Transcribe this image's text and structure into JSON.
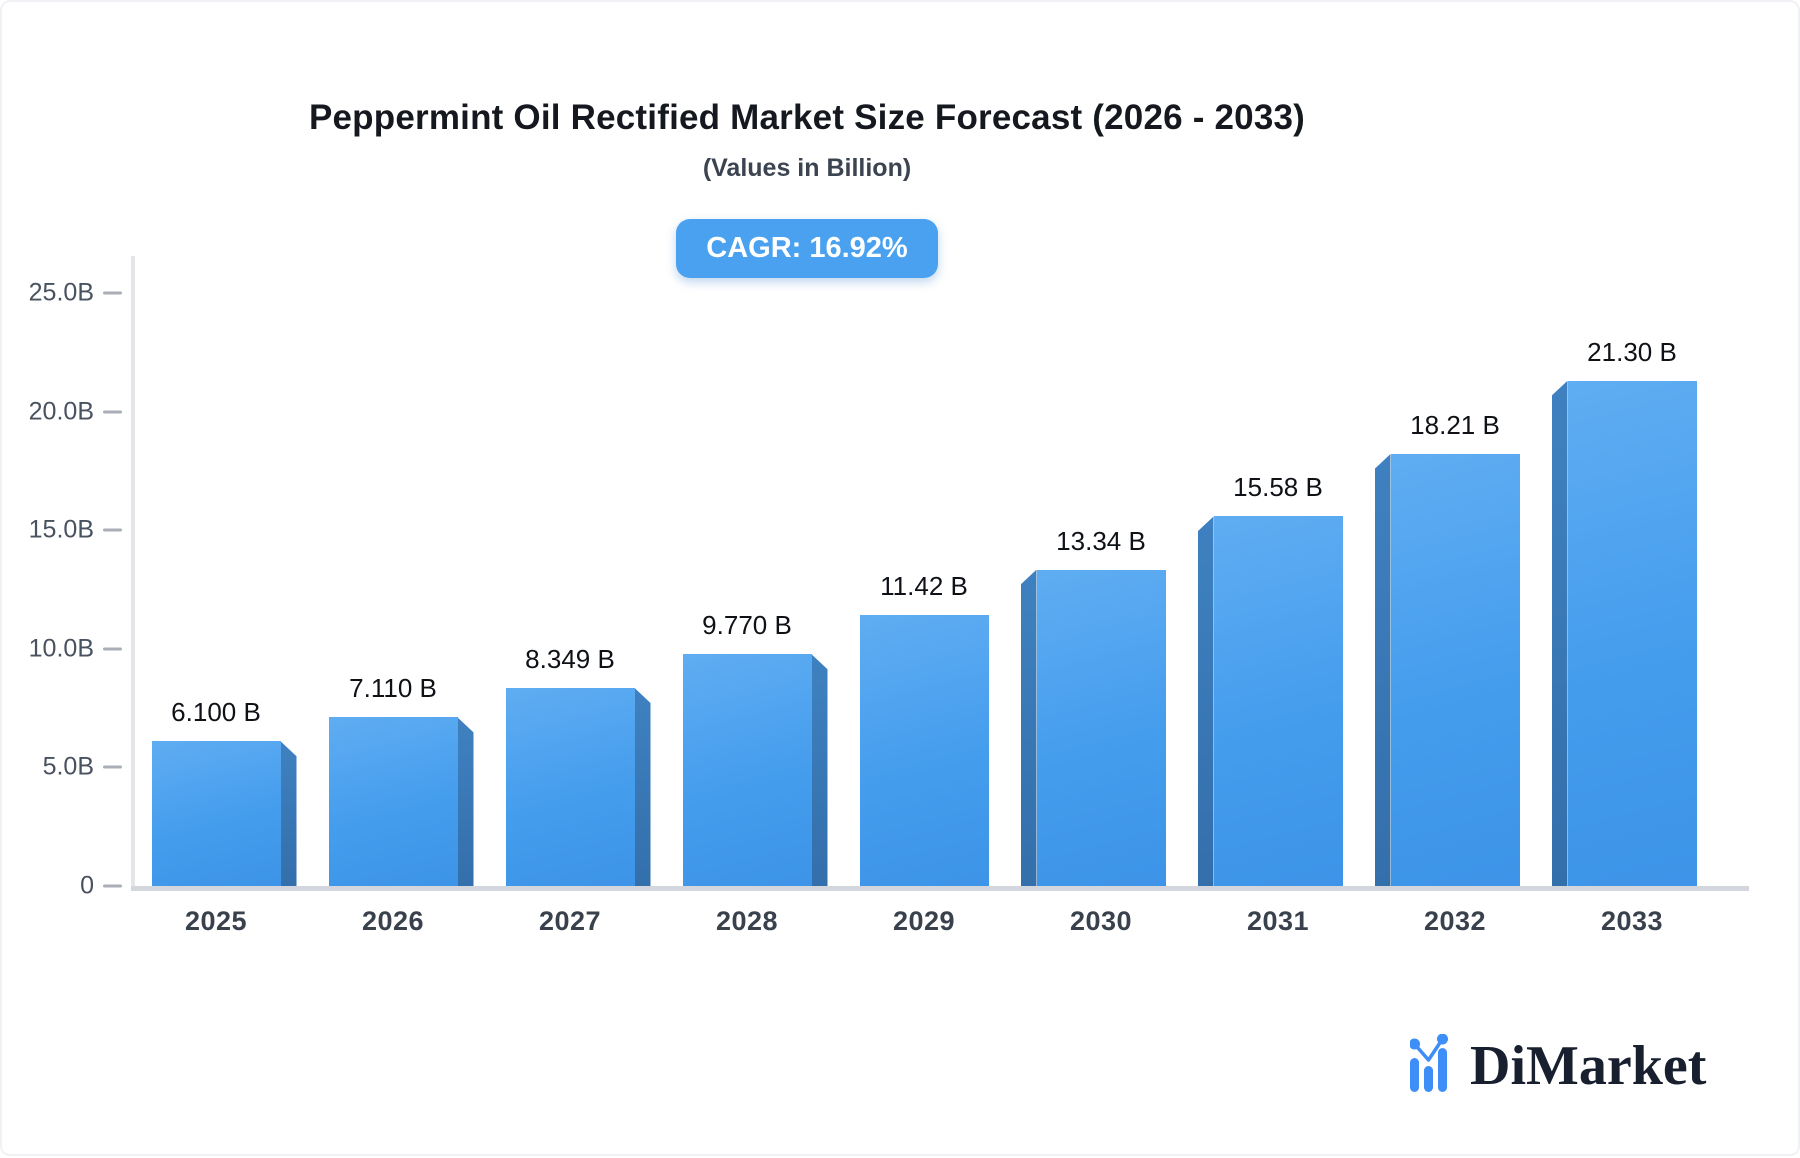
{
  "header": {
    "title": "Peppermint Oil Rectified Market Size Forecast (2026 - 2033)",
    "subtitle": "(Values in Billion)",
    "cagr_badge": "CAGR: 16.92%"
  },
  "chart_data": {
    "type": "bar",
    "title": "Peppermint Oil Rectified Market Size Forecast (2026 - 2033)",
    "subtitle": "(Values in Billion)",
    "cagr_percent": 16.92,
    "categories": [
      "2025",
      "2026",
      "2027",
      "2028",
      "2029",
      "2030",
      "2031",
      "2032",
      "2033"
    ],
    "values": [
      6.1,
      7.11,
      8.349,
      9.77,
      11.42,
      13.34,
      15.58,
      18.21,
      21.3
    ],
    "bar_labels": [
      "6.100 B",
      "7.110 B",
      "8.349 B",
      "9.770 B",
      "11.42 B",
      "13.34 B",
      "15.58 B",
      "18.21 B",
      "21.30 B"
    ],
    "xlabel": "",
    "ylabel": "",
    "ylim": [
      0,
      25
    ],
    "y_ticks": [
      {
        "label": "25.0B",
        "value": 25
      },
      {
        "label": "20.0B",
        "value": 20
      },
      {
        "label": "15.0B",
        "value": 15
      },
      {
        "label": "10.0B",
        "value": 10
      },
      {
        "label": "5.0B",
        "value": 5
      },
      {
        "label": "0",
        "value": 0
      }
    ],
    "grid": false,
    "legend": false,
    "bar_color": "#42A0EE",
    "bar_side_color": "#3578B8",
    "style": "3d-extruded-bars"
  },
  "footer": {
    "brand": "DiMarket",
    "brand_icon": "mini-bar-chart-logo-icon",
    "brand_text_color": "#182030",
    "brand_icon_color": "#3E8EF7"
  }
}
